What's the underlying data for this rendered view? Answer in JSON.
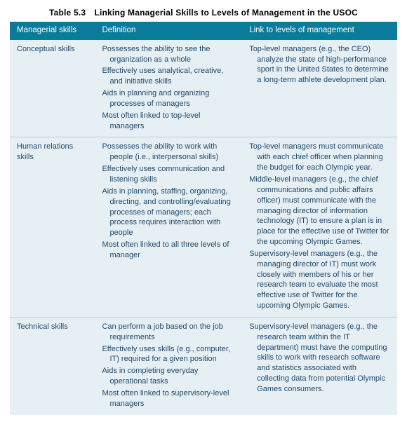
{
  "title": "Table 5.3 Linking Managerial Skills to Levels of Management in the USOC",
  "columns": [
    "Managerial skills",
    "Definition",
    "Link to levels of management"
  ],
  "rows": [
    {
      "skill": "Conceptual skills",
      "defs": [
        "Possesses the ability to see the organization as a whole",
        "Effectively uses analytical, creative, and initiative skills",
        "Aids in planning and organizing processes of managers",
        "Most often linked to top-level managers"
      ],
      "links": [
        "Top-level managers (e.g., the CEO) analyze the state of high-performance sport in the United States to determine a long-term athlete development plan."
      ]
    },
    {
      "skill": "Human relations skills",
      "defs": [
        "Possesses the ability to work with people (i.e., interpersonal skills)",
        "Effectively uses communication and listening skills",
        "Aids in planning, staffing, organizing, directing, and controlling/evaluating processes of managers; each process requires interaction with people",
        "Most often linked to all three levels of manager"
      ],
      "links": [
        "Top-level managers must communicate with each chief officer when planning the budget for each Olympic year.",
        "Middle-level managers (e.g., the chief communications and public affairs officer) must communicate with the managing director of information technology (IT) to ensure a plan is in place for the effective use of Twitter for the upcoming Olympic Games.",
        "Supervisory-level managers (e.g., the managing director of IT) must work closely with members of his or her research team to evaluate the most effective use of Twitter for the upcoming Olympic Games."
      ]
    },
    {
      "skill": "Technical skills",
      "defs": [
        "Can perform a job based on the job requirements",
        "Effectively uses skills (e.g., computer, IT) required for a given position",
        "Aids in completing everyday operational tasks",
        "Most often linked to supervisory-level managers"
      ],
      "links": [
        "Supervisory-level managers (e.g., the research team within the IT department) must have the computing skills to work with research software and statistics associated with collecting data from potential Olympic Games consumers."
      ]
    }
  ],
  "colors": {
    "header_bg": "#0b7b9b",
    "header_text": "#ffffff",
    "body_bg": "#e6eff4",
    "body_text": "#204a6b",
    "row_border": "#bcd1dd",
    "title_text": "#000000"
  },
  "typography": {
    "title_fontsize": 12,
    "header_fontsize": 11.5,
    "body_fontsize": 11,
    "font_family": "Myriad Pro, Segoe UI, Arial, sans-serif"
  }
}
